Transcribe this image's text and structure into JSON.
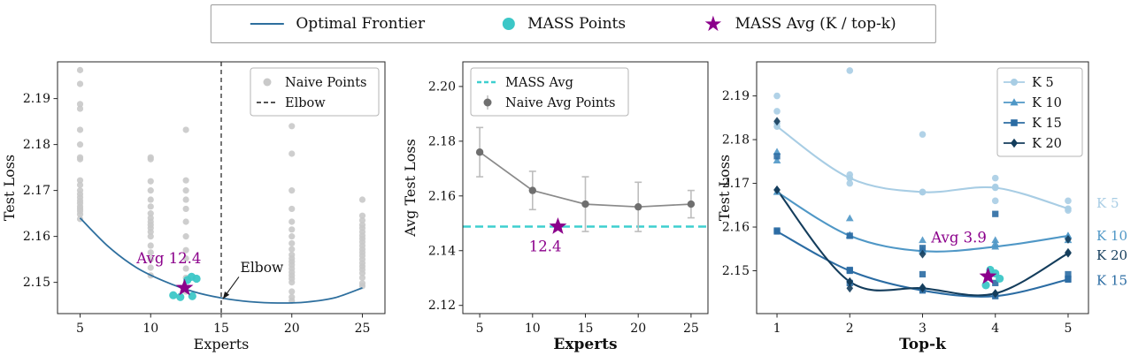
{
  "figure_legend": {
    "items": [
      {
        "label": "Optimal Frontier",
        "marker": "line",
        "color": "#2e6f9e"
      },
      {
        "label": "MASS Points",
        "marker": "circle",
        "color": "#3cc7c7"
      },
      {
        "label": "MASS Avg (K / top-k)",
        "marker": "star",
        "color": "#8b008b"
      }
    ]
  },
  "colors": {
    "frontier": "#2e6f9e",
    "mass": "#3cc7c7",
    "mass_avg": "#8b008b",
    "naive": "#c9c9c9",
    "elbow": "#1a1a1a",
    "avg_line_gray": "#8a8a8a",
    "marker_gray": "#6f6f6f",
    "errbar_gray": "#bdbdbd",
    "cyan_dashed": "#3ecfcf"
  },
  "chart_data": [
    {
      "id": "experts-test-loss",
      "type": "scatter",
      "xlabel": "Experts",
      "ylabel": "Test Loss",
      "xlim": [
        3.4,
        26.6
      ],
      "ylim": [
        2.1432,
        2.198
      ],
      "xticks": [
        5,
        10,
        15,
        20,
        25
      ],
      "xtick_labels": [
        "5",
        "10",
        "15",
        "20",
        "25"
      ],
      "yticks": [
        2.15,
        2.16,
        2.17,
        2.18,
        2.19
      ],
      "ytick_labels": [
        "2.15",
        "2.16",
        "2.17",
        "2.18",
        "2.19"
      ],
      "legend": {
        "position": "top-right",
        "items": [
          {
            "label": "Naive Points",
            "marker": "circle",
            "color": "#c9c9c9"
          },
          {
            "label": "Elbow",
            "marker": "dashed-line",
            "color": "#1a1a1a"
          }
        ]
      },
      "naive_columns": [
        {
          "x": 5,
          "ys": [
            2.1962,
            2.1932,
            2.1888,
            2.1878,
            2.1832,
            2.18,
            2.1772,
            2.1768,
            2.1722,
            2.1712,
            2.17,
            2.1692,
            2.1685,
            2.1678,
            2.1672,
            2.1665,
            2.166,
            2.1655,
            2.1648,
            2.1638
          ]
        },
        {
          "x": 10,
          "ys": [
            2.1772,
            2.1768,
            2.172,
            2.17,
            2.168,
            2.1665,
            2.165,
            2.164,
            2.1632,
            2.1625,
            2.1618,
            2.161,
            2.16,
            2.158,
            2.1565,
            2.155,
            2.1532,
            2.1515
          ]
        },
        {
          "x": 12.5,
          "ys": [
            2.1832,
            2.1722,
            2.17,
            2.168,
            2.166,
            2.1632,
            2.16,
            2.157,
            2.1552,
            2.153,
            2.151,
            2.148
          ]
        },
        {
          "x": 20,
          "ys": [
            2.184,
            2.178,
            2.17,
            2.166,
            2.1632,
            2.1615,
            2.16,
            2.1585,
            2.1572,
            2.156,
            2.1552,
            2.1545,
            2.1538,
            2.153,
            2.1522,
            2.1515,
            2.1508,
            2.15,
            2.148,
            2.1468,
            2.146
          ]
        },
        {
          "x": 25,
          "ys": [
            2.168,
            2.1645,
            2.1635,
            2.1625,
            2.1618,
            2.161,
            2.1602,
            2.1595,
            2.1588,
            2.158,
            2.1572,
            2.1565,
            2.1558,
            2.155,
            2.1542,
            2.1535,
            2.1528,
            2.152,
            2.151,
            2.1498,
            2.1492
          ]
        }
      ],
      "frontier": {
        "x": [
          5,
          7,
          9,
          11,
          13,
          15,
          17,
          19,
          21,
          23,
          25
        ],
        "y": [
          2.164,
          2.1578,
          2.1532,
          2.1502,
          2.148,
          2.1466,
          2.1458,
          2.1455,
          2.1457,
          2.1466,
          2.1488
        ]
      },
      "mass_points": [
        [
          11.6,
          2.1472
        ],
        [
          12.1,
          2.1468
        ],
        [
          12.6,
          2.1505
        ],
        [
          12.9,
          2.1512
        ],
        [
          13.25,
          2.1508
        ],
        [
          12.95,
          2.147
        ]
      ],
      "mass_avg_star": {
        "x": 12.4,
        "y": 2.1488
      },
      "avg_annotation": {
        "text": "Avg 12.4",
        "x": 9.0,
        "y": 2.1542
      },
      "elbow_x": 15,
      "elbow_annotation": {
        "text": "Elbow",
        "x": 16.35,
        "y": 2.1522,
        "arrow_from_x": 16.25,
        "arrow_from_y": 2.1512,
        "arrow_to_x": 15.12,
        "arrow_to_y": 2.1464
      }
    },
    {
      "id": "experts-avg-test-loss",
      "type": "line",
      "xlabel": "Experts",
      "ylabel": "Avg Test Loss",
      "xlim": [
        3.4,
        26.6
      ],
      "ylim": [
        2.117,
        2.209
      ],
      "xticks": [
        5,
        10,
        15,
        20,
        25
      ],
      "xtick_labels": [
        "5",
        "10",
        "15",
        "20",
        "25"
      ],
      "yticks": [
        2.12,
        2.14,
        2.16,
        2.18,
        2.2
      ],
      "ytick_labels": [
        "2.12",
        "2.14",
        "2.16",
        "2.18",
        "2.20"
      ],
      "legend": {
        "position": "top-left",
        "items": [
          {
            "label": "MASS Avg",
            "marker": "dashed-line",
            "color": "#3ecfcf",
            "lw": 2.4
          },
          {
            "label": "Naive Avg Points",
            "marker": "errorbar-circle",
            "color": "#6f6f6f"
          }
        ]
      },
      "naive_avg": {
        "x": [
          5,
          10,
          15,
          20,
          25
        ],
        "y": [
          2.176,
          2.162,
          2.157,
          2.156,
          2.157
        ],
        "yerr": [
          0.009,
          0.007,
          0.01,
          0.009,
          0.005
        ]
      },
      "mass_avg_y": 2.1488,
      "mass_avg_star": {
        "x": 12.4,
        "y": 2.1488
      },
      "avg_annotation": {
        "text": "12.4",
        "x": 11.2,
        "y": 2.1398
      }
    },
    {
      "id": "topk-test-loss",
      "type": "line-scatter",
      "xlabel": "Top-k",
      "ylabel": "Test Loss",
      "xlim": [
        0.72,
        5.28
      ],
      "ylim": [
        2.1402,
        2.1978
      ],
      "xticks": [
        1,
        2,
        3,
        4,
        5
      ],
      "xtick_labels": [
        "1",
        "2",
        "3",
        "4",
        "5"
      ],
      "yticks": [
        2.15,
        2.16,
        2.17,
        2.18,
        2.19
      ],
      "ytick_labels": [
        "2.15",
        "2.16",
        "2.17",
        "2.18",
        "2.19"
      ],
      "legend": {
        "position": "top-right"
      },
      "series": [
        {
          "name": "K 5",
          "color": "#a8cde4",
          "marker": "circle",
          "x": [
            1,
            2,
            3,
            4,
            5
          ],
          "y": [
            2.183,
            2.1712,
            2.168,
            2.169,
            2.1642
          ],
          "points": [
            [
              1,
              2.19
            ],
            [
              1,
              2.1865
            ],
            [
              1,
              2.1838
            ],
            [
              2,
              2.1958
            ],
            [
              2,
              2.172
            ],
            [
              2,
              2.17
            ],
            [
              3,
              2.1812
            ],
            [
              3,
              2.168
            ],
            [
              4,
              2.1712
            ],
            [
              4,
              2.1692
            ],
            [
              4,
              2.166
            ],
            [
              5,
              2.166
            ],
            [
              5,
              2.1638
            ]
          ]
        },
        {
          "name": "K 10",
          "color": "#4f97c6",
          "marker": "triangle",
          "x": [
            1,
            2,
            3,
            4,
            5
          ],
          "y": [
            2.168,
            2.158,
            2.1545,
            2.1555,
            2.158
          ],
          "points": [
            [
              1,
              2.1772
            ],
            [
              1,
              2.1752
            ],
            [
              2,
              2.162
            ],
            [
              2,
              2.1582
            ],
            [
              3,
              2.157
            ],
            [
              3,
              2.1548
            ],
            [
              4,
              2.157
            ],
            [
              4,
              2.1562
            ],
            [
              5,
              2.158
            ],
            [
              5,
              2.157
            ]
          ]
        },
        {
          "name": "K 15",
          "color": "#2b6ca3",
          "marker": "square",
          "x": [
            1,
            2,
            3,
            4,
            5
          ],
          "y": [
            2.159,
            2.15,
            2.1455,
            2.1442,
            2.148
          ],
          "points": [
            [
              1,
              2.1762
            ],
            [
              1,
              2.1592
            ],
            [
              2,
              2.158
            ],
            [
              2,
              2.1502
            ],
            [
              2,
              2.1472
            ],
            [
              3,
              2.1552
            ],
            [
              3,
              2.1492
            ],
            [
              4,
              2.163
            ],
            [
              4,
              2.1472
            ],
            [
              5,
              2.1492
            ],
            [
              5,
              2.1482
            ]
          ]
        },
        {
          "name": "K 20",
          "color": "#143d5c",
          "marker": "diamond",
          "x": [
            1,
            2,
            3,
            4,
            5
          ],
          "y": [
            2.1685,
            2.1475,
            2.146,
            2.1448,
            2.154
          ],
          "points": [
            [
              1,
              2.1842
            ],
            [
              1,
              2.1685
            ],
            [
              2,
              2.1475
            ],
            [
              2,
              2.146
            ],
            [
              3,
              2.1462
            ],
            [
              3,
              2.1538
            ],
            [
              4,
              2.1448
            ],
            [
              5,
              2.1542
            ],
            [
              5,
              2.1572
            ]
          ]
        }
      ],
      "mass_points": [
        [
          3.93,
          2.1502
        ],
        [
          4.06,
          2.1482
        ],
        [
          3.87,
          2.1467
        ],
        [
          4.0,
          2.1494
        ]
      ],
      "mass_avg_star": {
        "x": 3.9,
        "y": 2.1487
      },
      "avg_annotation": {
        "text": "Avg 3.9",
        "x": 3.5,
        "y": 2.1565
      },
      "right_labels": [
        {
          "text": "K 5",
          "color": "#a8cde4",
          "y": 2.1655
        },
        {
          "text": "K 10",
          "color": "#4f97c6",
          "y": 2.158
        },
        {
          "text": "K 20",
          "color": "#143d5c",
          "y": 2.1535
        },
        {
          "text": "K 15",
          "color": "#2b6ca3",
          "y": 2.1478
        }
      ]
    }
  ]
}
